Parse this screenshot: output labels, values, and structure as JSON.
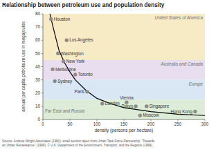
{
  "chart_data": {
    "type": "scatter",
    "title": "Relationship between petroleum use and population density",
    "x_label": "density (persons per hectare)",
    "y_label": "annual per capita petroleum use in megajoules",
    "source": [
      "Source: Andrew Wright Associates (1980), small section taken from Urban Task Force Partnership, \"Towards",
      "an Urban Renaissance\" (1999). © U.K. Department of the Environment, Transport, and the Regions (1999)."
    ],
    "xlim": [
      0,
      300
    ],
    "ylim": [
      0,
      80
    ],
    "xticks": [
      0,
      50,
      100,
      150,
      200,
      250,
      300
    ],
    "yticks": [
      0,
      10,
      20,
      30,
      40,
      50,
      60,
      70,
      80
    ],
    "grid": false,
    "marker": "circle",
    "color": "#8c8c8c",
    "point_labels": [
      "Houston",
      "Los Angeles",
      "Washington",
      "New York",
      "Melbourne",
      "Sydney",
      "Toronto",
      "Paris",
      "London",
      "Vienna",
      "Tokyo",
      "Singapore",
      "Moscow",
      "Hong Kong"
    ],
    "x": [
      15,
      44,
      28,
      38,
      18,
      22,
      60,
      82,
      110,
      155,
      172,
      192,
      180,
      282
    ],
    "values": [
      76,
      60,
      50,
      44,
      38,
      29,
      34,
      21,
      12,
      13,
      10,
      10,
      3,
      6
    ],
    "curve": {
      "x": [
        13,
        20,
        30,
        40,
        50,
        60,
        80,
        100,
        125,
        150,
        200,
        250,
        300
      ],
      "values": [
        80,
        68,
        52,
        43,
        36,
        30,
        22,
        16,
        12,
        9,
        6,
        4,
        3
      ],
      "color": "#000000",
      "line_style": "solid"
    },
    "bands": [
      {
        "name": "United States of America",
        "from": 45,
        "to": 80,
        "color": "#f6ebc4"
      },
      {
        "name": "Australia and Canada",
        "from": 30,
        "to": 45,
        "color": "#e8def0"
      },
      {
        "name": "Europe",
        "from": 15,
        "to": 30,
        "color": "#d8e7f3"
      },
      {
        "name": "Far East and Russia",
        "from": 0,
        "to": 15,
        "color": "#dcecd6"
      }
    ]
  }
}
